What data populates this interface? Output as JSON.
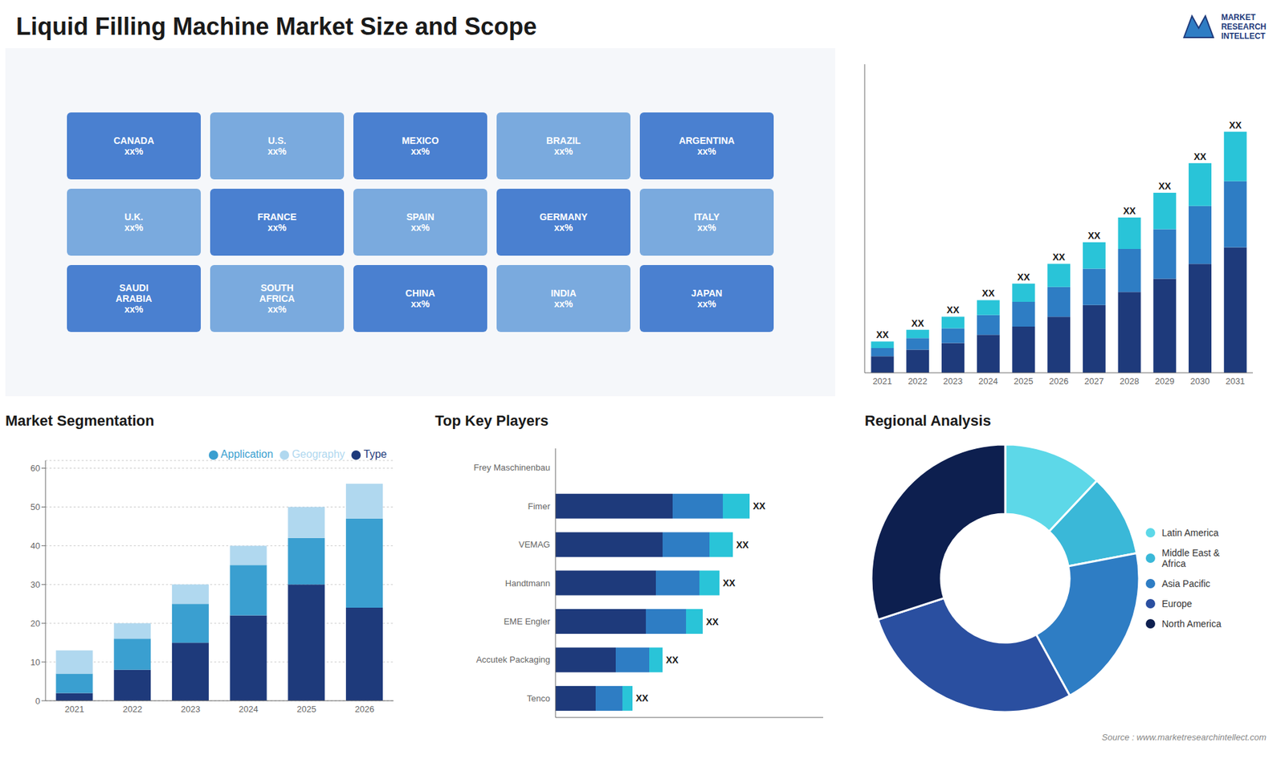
{
  "title": "Liquid Filling Machine Market Size and Scope",
  "annotations": [
    "MARKET",
    "RESEARCH",
    "INTELLECT",
    "Source : www.marketresearchintellect.com"
  ],
  "chart_data": [
    {
      "type": "map",
      "annotations": [
        "CANADA\nxx%",
        "U.S.\nxx%",
        "MEXICO\nxx%",
        "BRAZIL\nxx%",
        "ARGENTINA\nxx%",
        "U.K.\nxx%",
        "FRANCE\nxx%",
        "SPAIN\nxx%",
        "GERMANY\nxx%",
        "ITALY\nxx%",
        "SAUDI\nARABIA\nxx%",
        "SOUTH\nAFRICA\nxx%",
        "CHINA\nxx%",
        "INDIA\nxx%",
        "JAPAN\nxx%"
      ]
    },
    {
      "type": "bar",
      "stacked": true,
      "categories": [
        "2021",
        "2022",
        "2023",
        "2024",
        "2025",
        "2026",
        "2027",
        "2028",
        "2029",
        "2030",
        "2031"
      ],
      "series": [
        {
          "color": "#1e3a7b",
          "values": [
            1.0,
            1.4,
            1.8,
            2.3,
            2.8,
            3.4,
            4.1,
            4.9,
            5.7,
            6.6,
            7.6
          ]
        },
        {
          "color": "#2e7dc4",
          "values": [
            0.5,
            0.7,
            0.9,
            1.2,
            1.5,
            1.8,
            2.2,
            2.6,
            3.0,
            3.5,
            4.0
          ]
        },
        {
          "color": "#29c4d8",
          "values": [
            0.4,
            0.5,
            0.7,
            0.9,
            1.1,
            1.4,
            1.6,
            1.9,
            2.2,
            2.6,
            3.0
          ],
          "value_labels": [
            "XX",
            "XX",
            "XX",
            "XX",
            "XX",
            "XX",
            "XX",
            "XX",
            "XX",
            "XX",
            "XX"
          ]
        }
      ],
      "ylim": [
        0,
        18.688
      ],
      "tick_labels": "x"
    },
    {
      "type": "bar",
      "title": "Market Segmentation",
      "stacked": true,
      "categories": [
        "2021",
        "2022",
        "2023",
        "2024",
        "2025",
        "2026"
      ],
      "series": [
        {
          "name": "Type",
          "color": "#1e3a7b",
          "values": [
            2,
            8,
            15,
            22,
            30,
            24
          ]
        },
        {
          "name": "Application",
          "color": "#3a9fd0",
          "values": [
            5,
            8,
            10,
            13,
            12,
            23
          ]
        },
        {
          "name": "Geography",
          "color": "#b0d8ef",
          "values": [
            6,
            4,
            5,
            5,
            8,
            9
          ]
        }
      ],
      "ylim": [
        0,
        62
      ],
      "yticks": [
        0,
        10,
        20,
        30,
        40,
        50,
        60
      ],
      "grid": true,
      "legend": "upper right"
    },
    {
      "type": "bar",
      "title": "Top Key Players",
      "orientation": "horizontal",
      "stacked": true,
      "categories": [
        "Frey Maschinenbau",
        "Fimer",
        "VEMAG",
        "Handtmann",
        "EME Engler",
        "Accutek Packaging",
        "Tenco"
      ],
      "series": [
        {
          "color": "#1e3a7b",
          "values": [
            0,
            3.5,
            3.2,
            3.0,
            2.7,
            1.8,
            1.2
          ]
        },
        {
          "color": "#2e7dc4",
          "values": [
            0,
            1.5,
            1.4,
            1.3,
            1.2,
            1.0,
            0.8
          ]
        },
        {
          "color": "#29c4d8",
          "values": [
            0,
            0.8,
            0.7,
            0.6,
            0.5,
            0.4,
            0.3
          ],
          "value_labels": [
            null,
            "XX",
            "XX",
            "XX",
            "XX",
            "XX",
            "XX"
          ]
        }
      ],
      "xlim": [
        0,
        8
      ],
      "tick_labels": "y"
    },
    {
      "type": "donut",
      "title": "Regional Analysis",
      "categories": [
        "Latin America",
        "Middle East &\nAfrica",
        "Asia Pacific",
        "Europe",
        "North America"
      ],
      "values": [
        12,
        10,
        20,
        28,
        30
      ],
      "colors": [
        "#5dd8e8",
        "#3ab8d8",
        "#2e7dc4",
        "#2a4fa0",
        "#0d1f4f"
      ],
      "legend": "right"
    }
  ]
}
